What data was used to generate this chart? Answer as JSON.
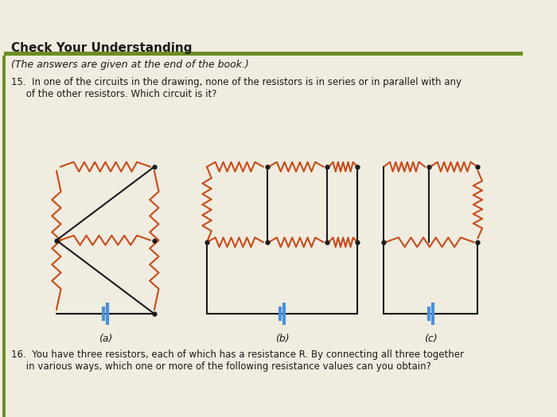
{
  "bg_color": "#f0ece0",
  "page_bg": "#f5f1e8",
  "resistor_color": "#c84b1a",
  "wire_color": "#1a1a1a",
  "battery_color": "#4a90d9",
  "title": "Check Your Understanding",
  "subtitle": "(The answers are given at the end of the book.)",
  "q15": "15.  In one of the circuits in the drawing, none of the resistors is in series or in parallel with any\n     of the other resistors. Which circuit is it?",
  "q16": "16.  You have three resistors, each of which has a resistance R. By connecting all three together\n     in various ways, which one or more of the following resistance values can you obtain?",
  "label_a": "(a)",
  "label_b": "(b)",
  "label_c": "(c)"
}
